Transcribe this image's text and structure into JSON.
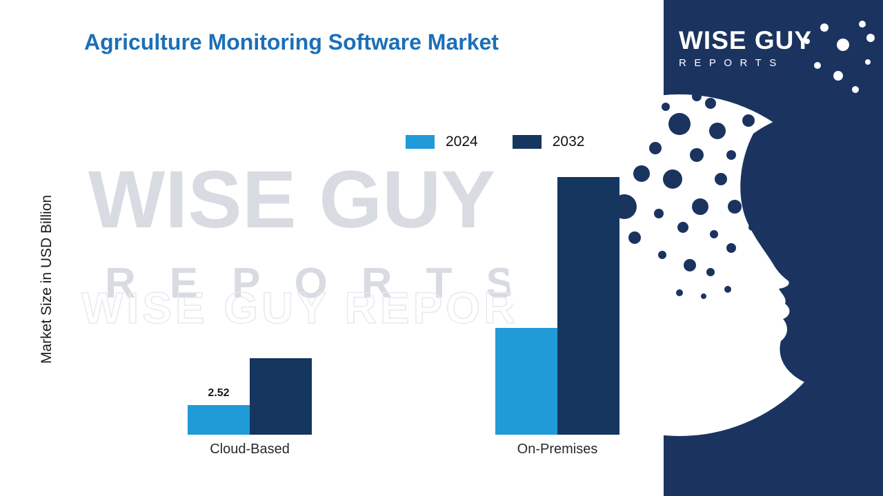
{
  "header": {
    "title": "Agriculture Monitoring Software Market",
    "title_color": "#1b70b8"
  },
  "brand": {
    "logo_line1": "WISE GUY",
    "logo_line2": "REPORTS",
    "band_color": "#1b335f"
  },
  "watermark": {
    "line1": "WISE GUY",
    "line2": "REPORTS",
    "line3": "WISE GUY REPORTS"
  },
  "chart_data": {
    "type": "bar",
    "title": "Agriculture Monitoring Software Market",
    "categories": [
      "Cloud-Based",
      "On-Premises"
    ],
    "series": [
      {
        "name": "2024",
        "color": "#209bd8",
        "values": [
          2.52,
          9.1
        ]
      },
      {
        "name": "2032",
        "color": "#14365f",
        "values": [
          6.5,
          22.0
        ]
      }
    ],
    "ylabel": "Market Size in USD Billion",
    "xlabel": "",
    "ylim": [
      0,
      24
    ],
    "grid": false,
    "legend_position": "top",
    "annotations": [
      {
        "series": "2024",
        "category": "Cloud-Based",
        "text": "2.52"
      }
    ]
  }
}
